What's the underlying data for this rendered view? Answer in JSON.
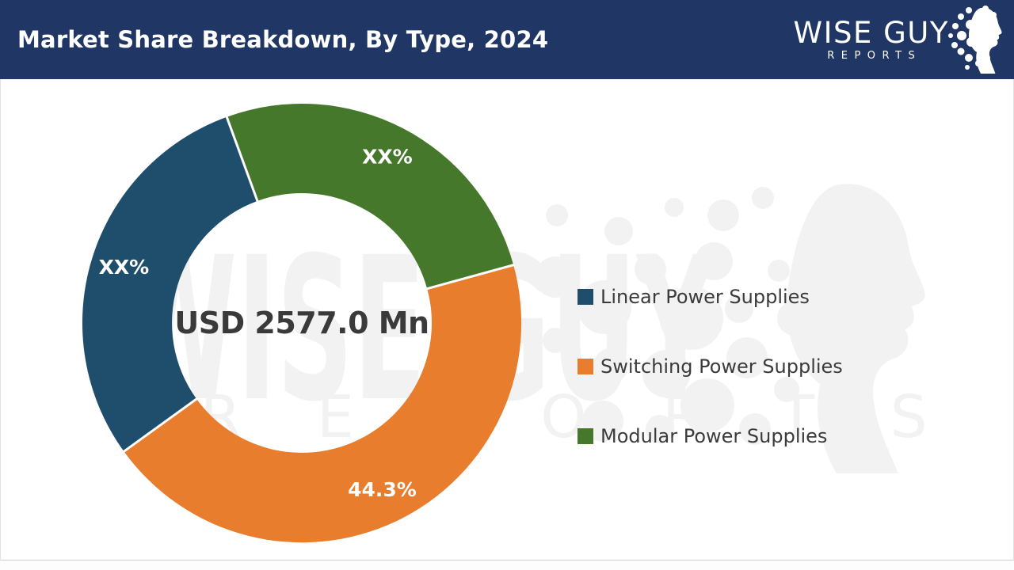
{
  "header": {
    "title": "Market Share Breakdown, By Type, 2024",
    "logo": {
      "wordmark": "WISE GUY",
      "subtitle": "REPORTS"
    }
  },
  "watermark": {
    "line1": "WISE GUY",
    "line2": "R E P O R T S"
  },
  "chart_data": {
    "type": "donut",
    "title": "Market Share Breakdown, By Type, 2024",
    "center_label": "USD 2577.0 Mn",
    "total_value_usd_mn": 2577.0,
    "start_angle_deg": -20,
    "legend_position": "right",
    "segments": [
      {
        "name": "Modular Power Supplies",
        "value": 26.3,
        "label": "XX%",
        "color": "#45782B"
      },
      {
        "name": "Switching Power Supplies",
        "value": 44.3,
        "label": "44.3%",
        "color": "#E87D2E"
      },
      {
        "name": "Linear Power Supplies",
        "value": 29.4,
        "label": "XX%",
        "color": "#1F4E6D"
      }
    ]
  },
  "legend": {
    "items": [
      {
        "label": "Linear Power Supplies",
        "color": "#1F4E6D"
      },
      {
        "label": "Switching Power Supplies",
        "color": "#E87D2E"
      },
      {
        "label": "Modular Power Supplies",
        "color": "#45782B"
      }
    ]
  },
  "colors": {
    "header_bg": "#203665",
    "center_text": "#3A3A3A",
    "legend_text": "#3B3B3B",
    "watermark": "#F2F2F2"
  }
}
